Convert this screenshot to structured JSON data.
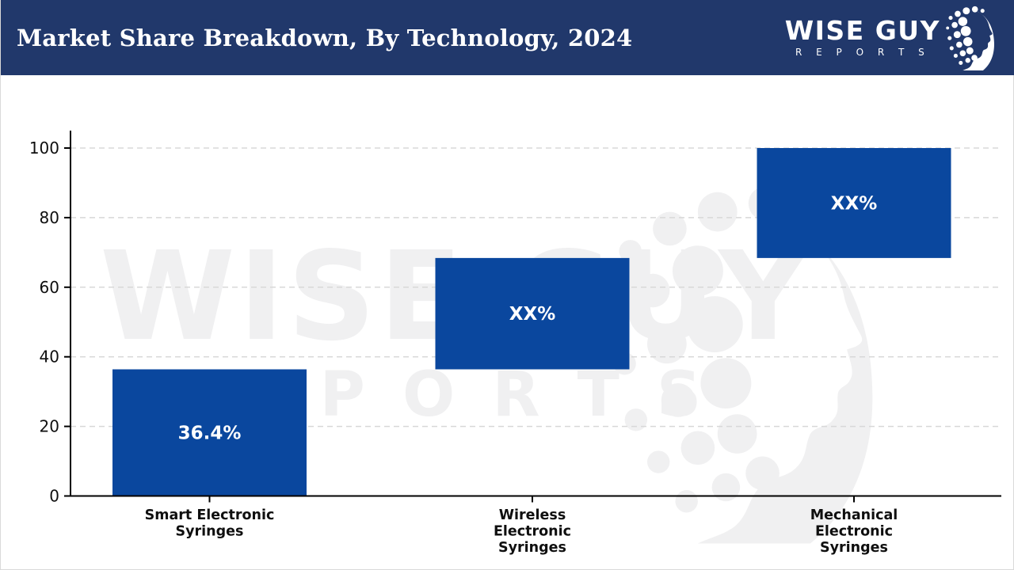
{
  "header": {
    "title": "Market Share Breakdown, By Technology, 2024",
    "logo": {
      "name": "WISE GUY",
      "sub": "R E P O R T S"
    }
  },
  "watermark": {
    "line1": "WISE GUY",
    "line2": "R E P O R T S"
  },
  "colors": {
    "header_bg": "#21386b",
    "bar": "#0a479e",
    "bar_label": "#ffffff",
    "grid": "#d8d8d8",
    "axis": "#000000",
    "tick_label": "#0f0f0f",
    "watermark": "#f0f0f1",
    "border": "#d9d9d9"
  },
  "chart_data": {
    "type": "bar",
    "variant": "waterfall-floating-bars",
    "title": "Market Share Breakdown, By Technology, 2024",
    "categories": [
      "Smart Electronic Syringes",
      "Wireless Electronic Syringes",
      "Mechanical Electronic Syringes"
    ],
    "category_label_lines": [
      [
        "Smart Electronic",
        "Syringes"
      ],
      [
        "Wireless",
        "Electronic",
        "Syringes"
      ],
      [
        "Mechanical",
        "Electronic",
        "Syringes"
      ]
    ],
    "segments": [
      {
        "category": "Smart Electronic Syringes",
        "start": 0,
        "end": 36.4,
        "label": "36.4%"
      },
      {
        "category": "Wireless Electronic Syringes",
        "start": 36.4,
        "end": 68.4,
        "label": "XX%"
      },
      {
        "category": "Mechanical Electronic Syringes",
        "start": 68.4,
        "end": 100,
        "label": "XX%"
      }
    ],
    "ylim": [
      0,
      100
    ],
    "yticks": [
      0,
      20,
      40,
      60,
      80,
      100
    ],
    "xlabel": "",
    "ylabel": "",
    "grid": "horizontal-dashed",
    "legend": "none"
  }
}
